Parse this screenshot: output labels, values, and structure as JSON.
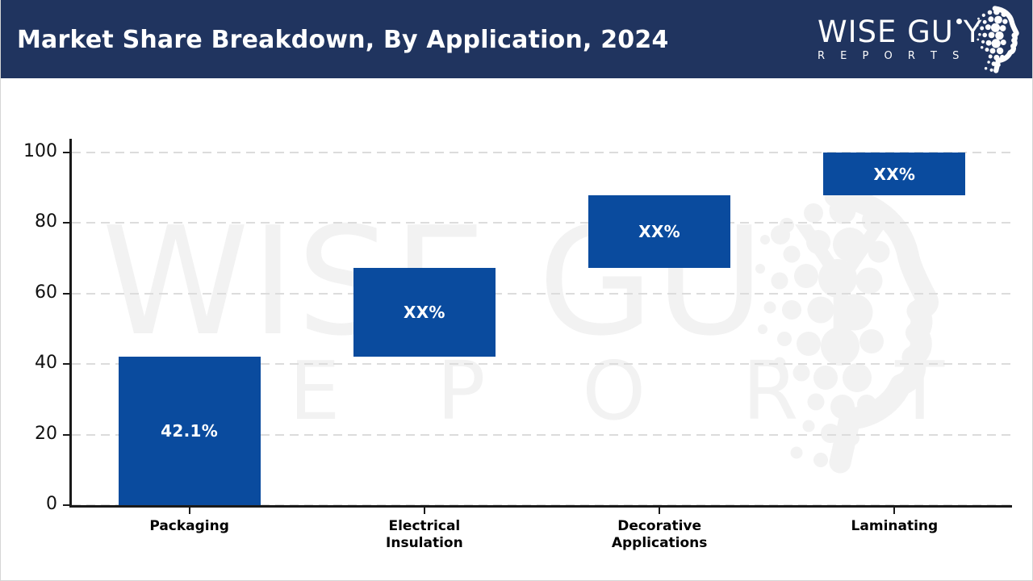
{
  "header": {
    "title": "Market Share Breakdown, By Application, 2024",
    "logo": {
      "name_main": "WISE GU",
      "name_y": "Y",
      "subtitle": "R E P O R T S"
    }
  },
  "watermark": {
    "line1_main": "WISE GU",
    "line1_y": "Y",
    "line2": "R E P O R T S"
  },
  "colors": {
    "header_bg": "#20345f",
    "bar": "#0a4b9e",
    "watermark": "#f2f2f2",
    "grid": "#dcdcdc",
    "axis": "#1a1a1a",
    "bar_label": "#ffffff"
  },
  "chart_data": {
    "type": "bar",
    "subtype": "waterfall-stacked",
    "title": "Market Share Breakdown, By Application, 2024",
    "categories": [
      "Packaging",
      "Electrical\nInsulation",
      "Decorative\nApplications",
      "Laminating"
    ],
    "segments": [
      {
        "category": "Packaging",
        "from": 0,
        "to": 42.1,
        "label": "42.1%"
      },
      {
        "category": "Electrical Insulation",
        "from": 42.1,
        "to": 67.2,
        "label": "XX%"
      },
      {
        "category": "Decorative Applications",
        "from": 67.2,
        "to": 87.7,
        "label": "XX%"
      },
      {
        "category": "Laminating",
        "from": 87.7,
        "to": 100,
        "label": "XX%"
      }
    ],
    "yticks": [
      0,
      20,
      40,
      60,
      80,
      100
    ],
    "ylim": [
      0,
      103.8
    ],
    "xlabel": "",
    "ylabel": "",
    "grid": "horizontal-dashed",
    "legend": "none"
  }
}
